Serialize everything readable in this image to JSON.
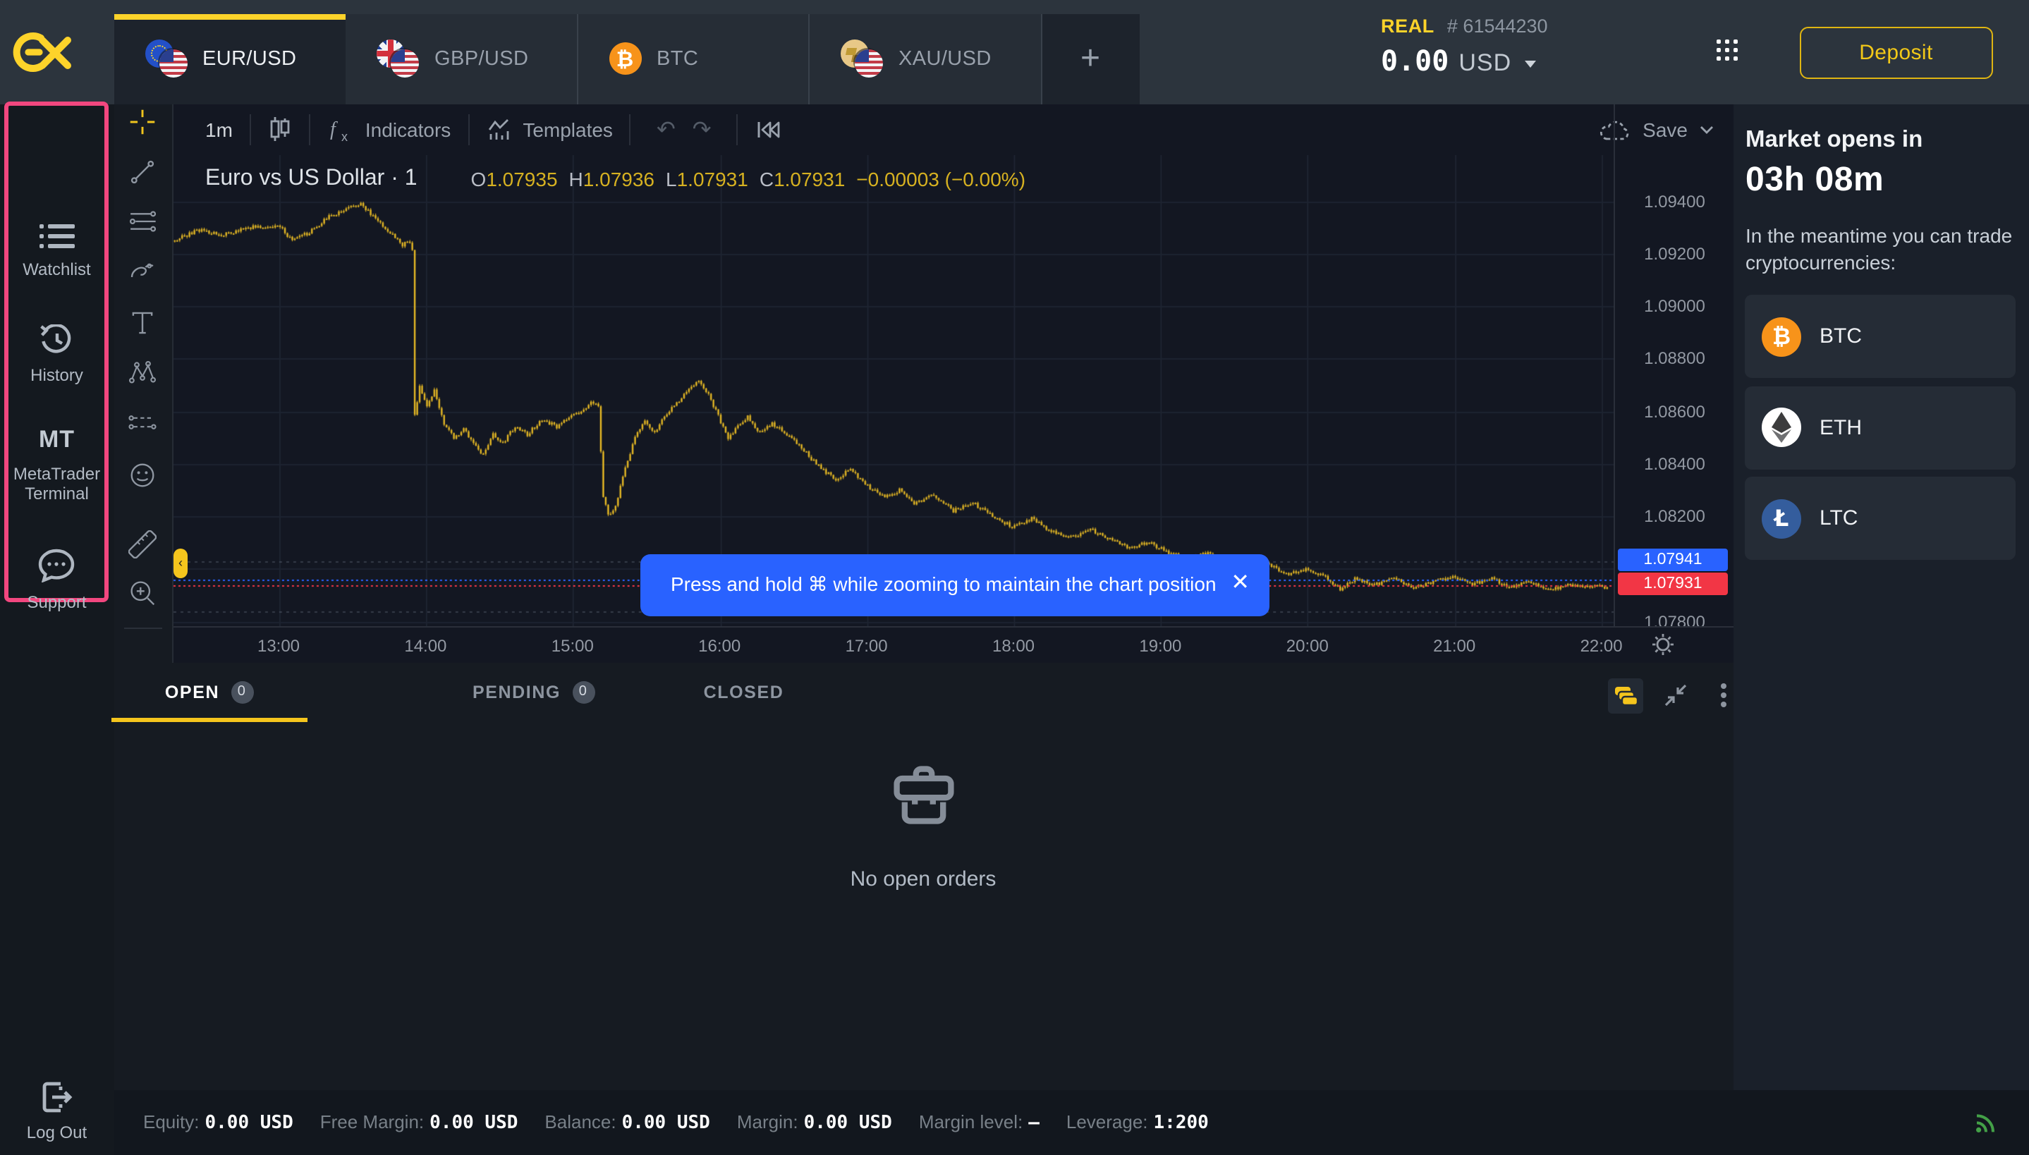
{
  "topbar": {
    "tabs": [
      {
        "label": "EUR/USD",
        "icon": "eu-us-flags",
        "active": true
      },
      {
        "label": "GBP/USD",
        "icon": "gb-us-flags",
        "active": false
      },
      {
        "label": "BTC",
        "icon": "btc-coin",
        "active": false
      },
      {
        "label": "XAU/USD",
        "icon": "gold-us-flags",
        "active": false
      }
    ],
    "add_tab_label": "+",
    "account": {
      "type": "REAL",
      "number": "# 61544230",
      "balance": "0.00",
      "currency": "USD"
    },
    "deposit_label": "Deposit"
  },
  "sidebar": {
    "items": [
      {
        "label": "Watchlist",
        "icon": "watchlist-icon"
      },
      {
        "label": "History",
        "icon": "history-icon"
      },
      {
        "label": "MetaTrader\nTerminal",
        "icon": "mt-text",
        "big": "MT"
      },
      {
        "label": "Support",
        "icon": "support-icon"
      }
    ],
    "logout_label": "Log Out",
    "highlight_color": "#f2477f"
  },
  "chart_toolbar": {
    "interval": "1m",
    "indicators_label": "Indicators",
    "templates_label": "Templates",
    "save_label": "Save"
  },
  "symbol_row": {
    "title": "Euro vs US Dollar · 1",
    "ohlc": [
      [
        "O",
        "1.07935"
      ],
      [
        "H",
        "1.07936"
      ],
      [
        "L",
        "1.07931"
      ],
      [
        "C",
        "1.07931"
      ]
    ],
    "change": "−0.00003 (−0.00%)"
  },
  "tooltip": {
    "text": "Press and hold ⌘ while zooming to maintain the chart position"
  },
  "orders_panel": {
    "tabs": [
      {
        "label": "OPEN",
        "count": "0",
        "active": true
      },
      {
        "label": "PENDING",
        "count": "0",
        "active": false
      },
      {
        "label": "CLOSED",
        "count": null,
        "active": false
      }
    ],
    "empty_text": "No open orders"
  },
  "market_panel": {
    "title": "Market opens in",
    "countdown": "03h 08m",
    "subtitle": "In the meantime you can trade cryptocurrencies:",
    "assets": [
      {
        "label": "BTC",
        "color": "#f7931a",
        "symbol": "₿"
      },
      {
        "label": "ETH",
        "color": "#ffffff",
        "symbol": "eth-diamond"
      },
      {
        "label": "LTC",
        "color": "#345d9d",
        "symbol": "Ł"
      }
    ]
  },
  "status_bar": {
    "items": [
      {
        "label": "Equity:",
        "value": "0.00 USD"
      },
      {
        "label": "Free Margin:",
        "value": "0.00 USD"
      },
      {
        "label": "Balance:",
        "value": "0.00 USD"
      },
      {
        "label": "Margin:",
        "value": "0.00 USD"
      },
      {
        "label": "Margin level:",
        "value": "–"
      },
      {
        "label": "Leverage:",
        "value": "1:200"
      }
    ]
  },
  "chart_data": {
    "type": "candlestick",
    "symbol": "EUR/USD",
    "interval": "1m",
    "title": "Euro vs US Dollar",
    "ylim": [
      1.0776,
      1.0944
    ],
    "y_gridlines": [
      1.094,
      1.092,
      1.09,
      1.088,
      1.086,
      1.084,
      1.082,
      1.08,
      1.078
    ],
    "y_axis_labels": [
      "1.09400",
      "1.09200",
      "1.09000",
      "1.08800",
      "1.08600",
      "1.08400",
      "1.08200",
      "1.07800"
    ],
    "x_labels": [
      "13:00",
      "14:00",
      "15:00",
      "16:00",
      "17:00",
      "18:00",
      "19:00",
      "20:00",
      "21:00",
      "22:00"
    ],
    "start_time": "12:17",
    "minutes": 586,
    "bid_label": {
      "value": "1.07941",
      "color": "#2962ff"
    },
    "ask_label": {
      "value": "1.07931",
      "color": "#f23645"
    },
    "candle_color": "#ddb224",
    "path_anchors": [
      [
        0,
        1.0925
      ],
      [
        10,
        1.0929
      ],
      [
        20,
        1.0927
      ],
      [
        30,
        1.093
      ],
      [
        43,
        1.093
      ],
      [
        48,
        1.0925
      ],
      [
        55,
        1.0928
      ],
      [
        63,
        1.0934
      ],
      [
        73,
        1.0938
      ],
      [
        76,
        1.0939
      ],
      [
        81,
        1.0934
      ],
      [
        88,
        1.0928
      ],
      [
        93,
        1.0923
      ],
      [
        95,
        1.0925
      ],
      [
        97,
        1.0922
      ],
      [
        98,
        1.0858
      ],
      [
        100,
        1.087
      ],
      [
        103,
        1.0862
      ],
      [
        106,
        1.0868
      ],
      [
        110,
        1.0855
      ],
      [
        114,
        1.085
      ],
      [
        118,
        1.0853
      ],
      [
        122,
        1.0848
      ],
      [
        126,
        1.0843
      ],
      [
        130,
        1.0851
      ],
      [
        134,
        1.0848
      ],
      [
        139,
        1.0854
      ],
      [
        144,
        1.0851
      ],
      [
        150,
        1.0857
      ],
      [
        156,
        1.0854
      ],
      [
        162,
        1.0858
      ],
      [
        168,
        1.0861
      ],
      [
        170,
        1.0864
      ],
      [
        173,
        1.0862
      ],
      [
        175,
        1.0828
      ],
      [
        177,
        1.082
      ],
      [
        180,
        1.0824
      ],
      [
        184,
        1.0838
      ],
      [
        188,
        1.085
      ],
      [
        192,
        1.0856
      ],
      [
        196,
        1.0852
      ],
      [
        200,
        1.0858
      ],
      [
        205,
        1.0863
      ],
      [
        210,
        1.0868
      ],
      [
        214,
        1.0872
      ],
      [
        218,
        1.0866
      ],
      [
        222,
        1.0858
      ],
      [
        226,
        1.085
      ],
      [
        230,
        1.0854
      ],
      [
        234,
        1.0858
      ],
      [
        238,
        1.0852
      ],
      [
        244,
        1.0855
      ],
      [
        252,
        1.085
      ],
      [
        258,
        1.0844
      ],
      [
        264,
        1.0838
      ],
      [
        270,
        1.0834
      ],
      [
        276,
        1.0838
      ],
      [
        282,
        1.0832
      ],
      [
        290,
        1.0827
      ],
      [
        296,
        1.083
      ],
      [
        302,
        1.0825
      ],
      [
        310,
        1.0828
      ],
      [
        318,
        1.0822
      ],
      [
        326,
        1.0825
      ],
      [
        334,
        1.082
      ],
      [
        342,
        1.0816
      ],
      [
        350,
        1.0819
      ],
      [
        358,
        1.0814
      ],
      [
        366,
        1.0812
      ],
      [
        374,
        1.0815
      ],
      [
        382,
        1.0811
      ],
      [
        390,
        1.0808
      ],
      [
        398,
        1.081
      ],
      [
        406,
        1.0806
      ],
      [
        414,
        1.0804
      ],
      [
        422,
        1.0806
      ],
      [
        430,
        1.0802
      ],
      [
        438,
        1.08
      ],
      [
        446,
        1.0802
      ],
      [
        454,
        1.0798
      ],
      [
        462,
        1.08
      ],
      [
        470,
        1.0797
      ],
      [
        476,
        1.0792
      ],
      [
        482,
        1.0796
      ],
      [
        490,
        1.0794
      ],
      [
        498,
        1.0796
      ],
      [
        506,
        1.0793
      ],
      [
        514,
        1.0795
      ],
      [
        522,
        1.0797
      ],
      [
        530,
        1.0794
      ],
      [
        538,
        1.0796
      ],
      [
        546,
        1.0793
      ],
      [
        554,
        1.0795
      ],
      [
        562,
        1.0792
      ],
      [
        570,
        1.0794
      ],
      [
        578,
        1.0793
      ],
      [
        585,
        1.07931
      ]
    ]
  }
}
